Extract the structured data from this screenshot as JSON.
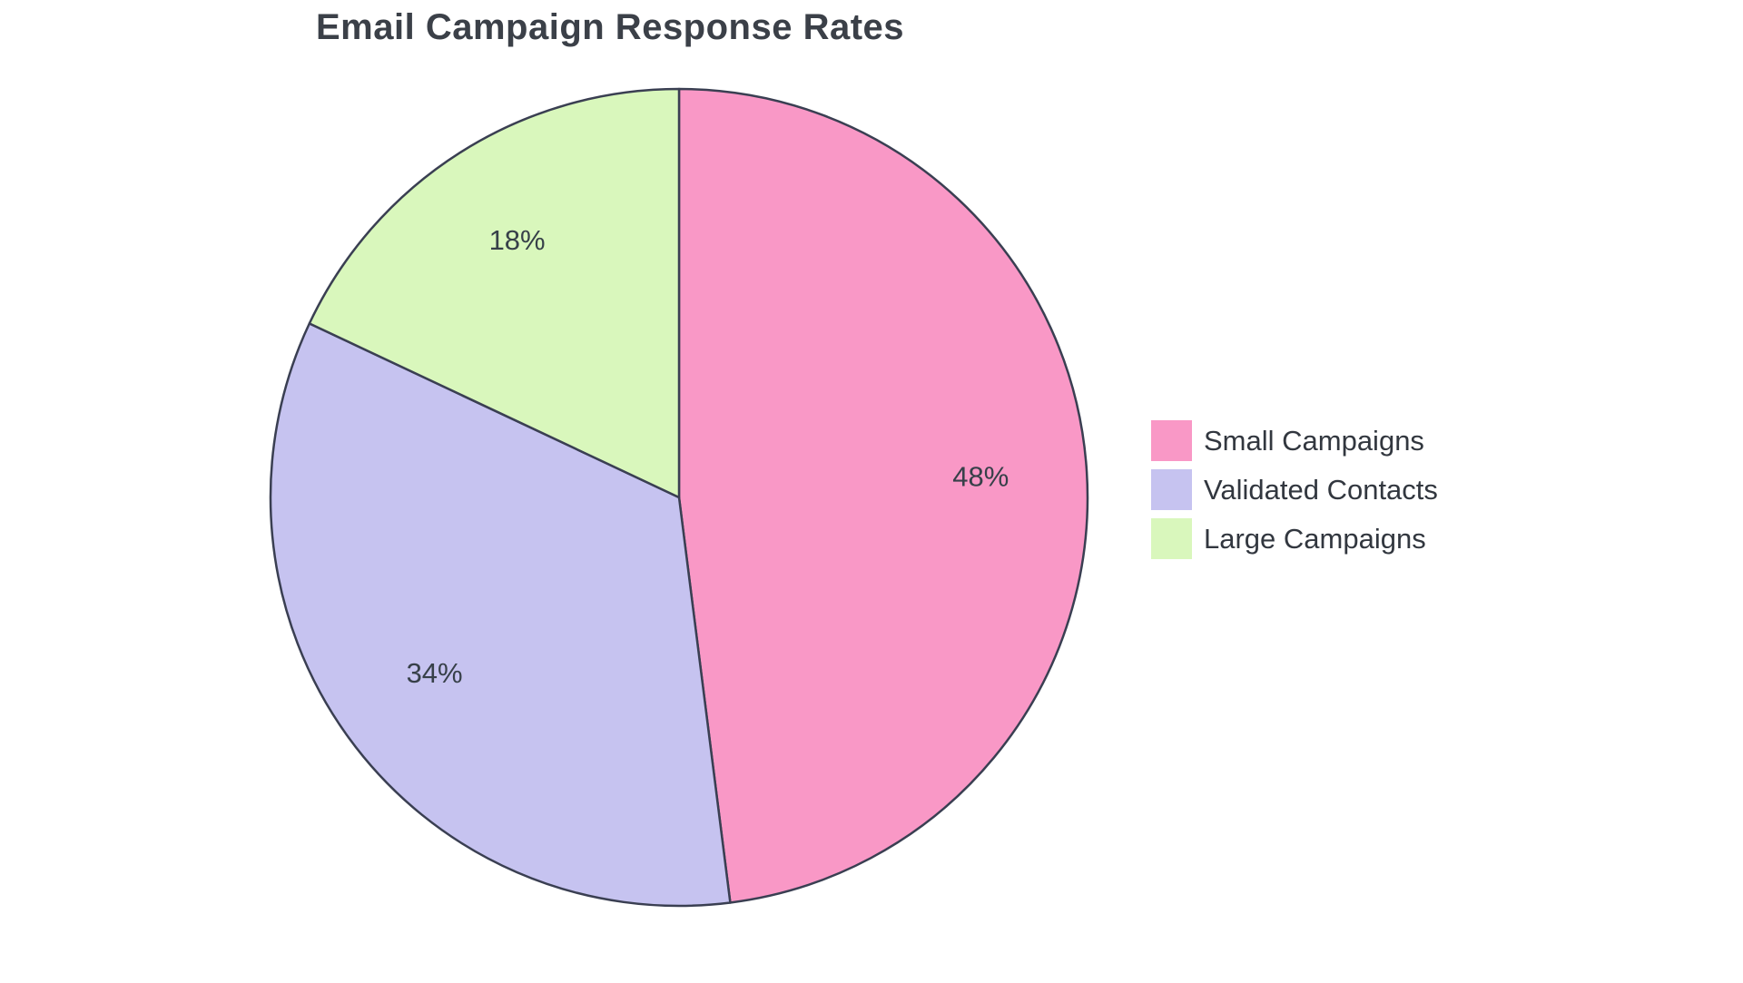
{
  "page": {
    "background_color": "#FFFFFF"
  },
  "chart_data": {
    "type": "pie",
    "title": "Email Campaign Response Rates",
    "start_angle_deg": 0,
    "direction": "clockwise",
    "legend_position": "right",
    "stroke_color": "#3A3F52",
    "label_color": "#374049",
    "slices": [
      {
        "label": "Small Campaigns",
        "value": 48,
        "pct_label": "48%",
        "color": "#F998C6"
      },
      {
        "label": "Validated Contacts",
        "value": 34,
        "pct_label": "34%",
        "color": "#C6C3F0"
      },
      {
        "label": "Large Campaigns",
        "value": 18,
        "pct_label": "18%",
        "color": "#D9F7BC"
      }
    ]
  }
}
